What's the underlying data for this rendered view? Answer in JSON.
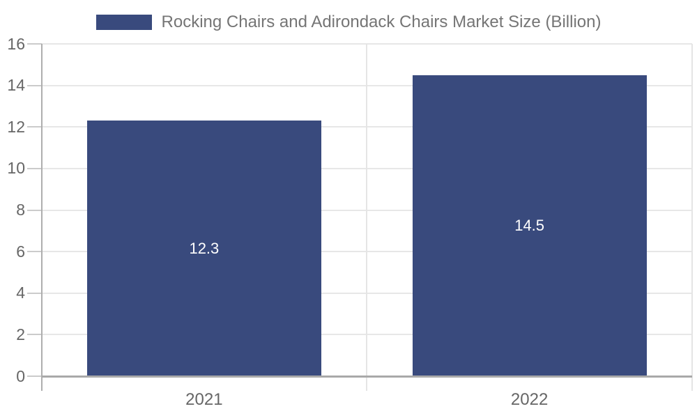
{
  "chart_data": {
    "type": "bar",
    "title": "Rocking Chairs and Adirondack Chairs Market Size (Billion)",
    "legend": {
      "label": "Rocking Chairs and Adirondack Chairs Market Size (Billion)",
      "position": "top"
    },
    "categories": [
      "2021",
      "2022"
    ],
    "series": [
      {
        "name": "Rocking Chairs and Adirondack Chairs Market Size (Billion)",
        "values": [
          12.3,
          14.5
        ]
      }
    ],
    "data_labels": [
      "12.3",
      "14.5"
    ],
    "xlabel": "",
    "ylabel": "",
    "ylim": [
      0,
      16
    ],
    "yticks": [
      "0",
      "2",
      "4",
      "6",
      "8",
      "10",
      "12",
      "14",
      "16"
    ],
    "grid": true,
    "colors": {
      "bar": "#394A7D",
      "bar_label_text": "#ffffff",
      "legend_text": "#757575",
      "axis_label_text": "#666666",
      "gridline": "#e7e7e7",
      "axis_line": "#aeaeae",
      "baseline": "#a9a9a9"
    }
  }
}
